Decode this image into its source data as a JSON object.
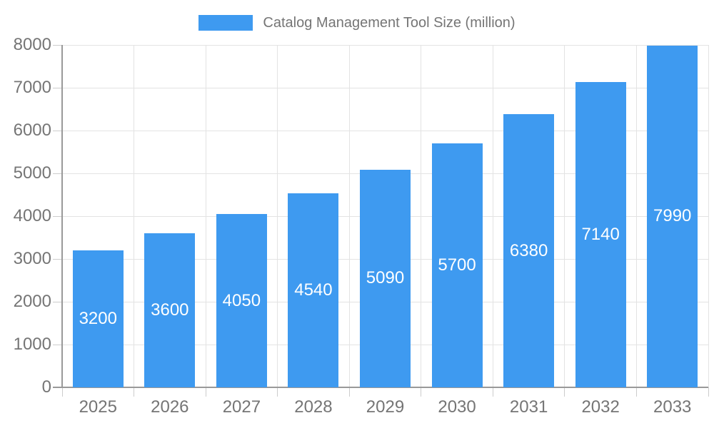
{
  "legend": {
    "label": "Catalog Management Tool Size (million)"
  },
  "colors": {
    "bar": "#3E9AF0",
    "bar_label": "#FFFFFF",
    "axis_text": "#757575",
    "grid_line": "#E3E3E3",
    "tick_line": "#CCCCCC",
    "axis_line": "#999999",
    "background": "#FFFFFF"
  },
  "chart_data": {
    "type": "bar",
    "title": "Catalog Management Tool Size (million)",
    "series_name": "Catalog Management Tool Size (million)",
    "categories": [
      "2025",
      "2026",
      "2027",
      "2028",
      "2029",
      "2030",
      "2031",
      "2032",
      "2033"
    ],
    "values": [
      3200,
      3600,
      4050,
      4540,
      5090,
      5700,
      6380,
      7140,
      7990
    ],
    "xlabel": "",
    "ylabel": "",
    "ylim": [
      0,
      8000
    ],
    "ytick_step": 1000,
    "ytick_labels": [
      "0",
      "1000",
      "2000",
      "3000",
      "4000",
      "5000",
      "6000",
      "7000",
      "8000"
    ],
    "grid": true,
    "legend_position": "top",
    "bar_value_labels_visible": true
  }
}
